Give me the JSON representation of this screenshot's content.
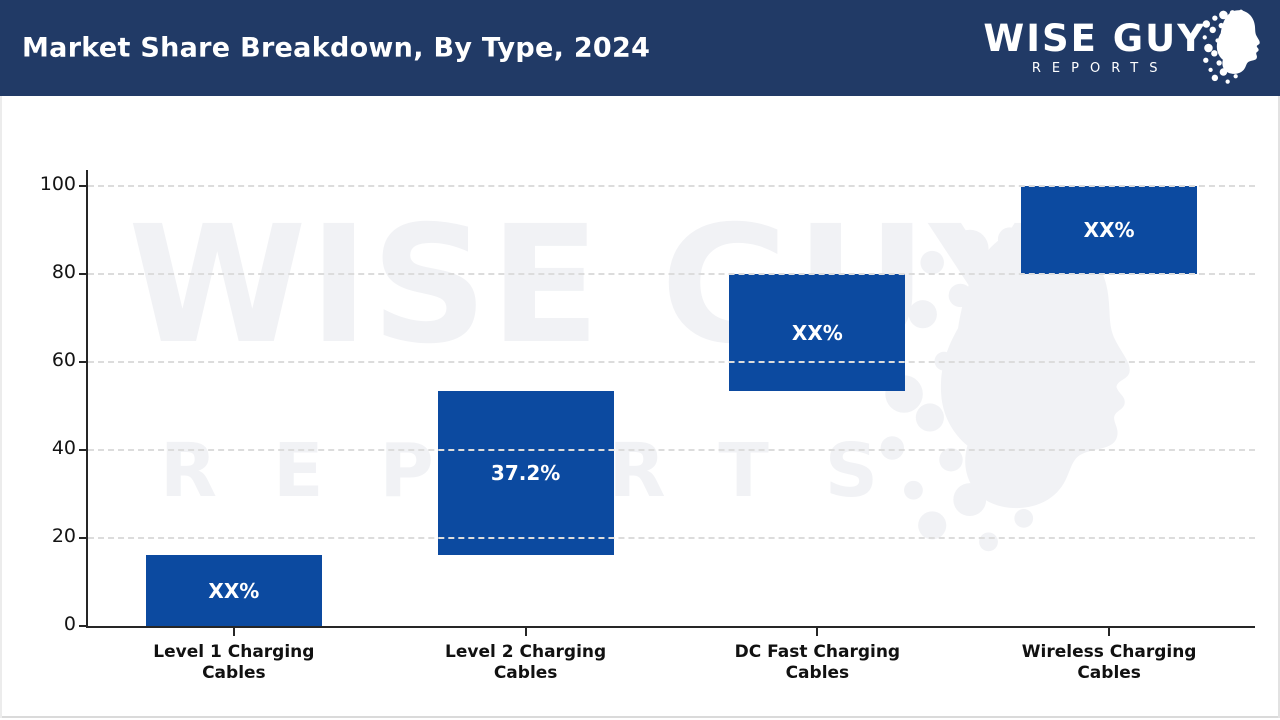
{
  "header": {
    "title": "Market Share Breakdown, By Type, 2024",
    "logo": {
      "name_top": "WISE GUY",
      "name_bottom": "REPORTS"
    }
  },
  "watermark": {
    "line1": "WISE GUY",
    "line2": "REPORTS"
  },
  "chart_data": {
    "type": "bar",
    "subtype": "waterfall",
    "title": "Market Share Breakdown, By Type, 2024",
    "categories": [
      "Level 1 Charging Cables",
      "Level 2 Charging Cables",
      "DC Fast Charging Cables",
      "Wireless Charging Cables"
    ],
    "values": [
      16.1,
      37.2,
      26.8,
      19.9
    ],
    "bases": [
      0,
      16.1,
      53.3,
      80.1
    ],
    "bar_labels": [
      "XX%",
      "37.2%",
      "XX%",
      "XX%"
    ],
    "ylim": [
      0,
      100
    ],
    "yticks": [
      0,
      20,
      40,
      60,
      80,
      100
    ],
    "xlabel": "",
    "ylabel": "",
    "grid": "horizontal-dashed",
    "legend": "none",
    "bar_color": "#0c4aa0",
    "bar_label_color": "#ffffff",
    "axis_color": "#262626",
    "grid_color": "#dcdcdc"
  }
}
